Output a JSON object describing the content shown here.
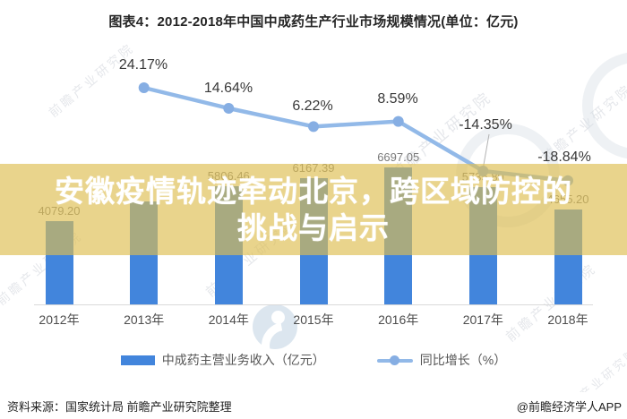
{
  "title": "图表4：2012-2018年中国中成药生产行业市场规模情况(单位：亿元)",
  "banner": {
    "line1": "安徽疫情轨迹牵动北京，跨区域防控的",
    "line2": "挑战与启示",
    "background": "#E9D48B",
    "text_color": "#FFFFFF"
  },
  "chart_data": {
    "type": "bar",
    "subtype": "combo-bar-line",
    "title": "图表4：2012-2018年中国中成药生产行业市场规模情况(单位：亿元)",
    "categories": [
      "2012年",
      "2013年",
      "2014年",
      "2015年",
      "2016年",
      "2017年",
      "2018年"
    ],
    "series": [
      {
        "name": "中成药主营业务收入（亿元）",
        "type": "bar",
        "color": "#4285DC",
        "values": [
          4079.2,
          5065.18,
          5806.46,
          6167.39,
          6697.05,
          5735.8,
          4655.2
        ],
        "labels": [
          "4079.20",
          "",
          "5806.46",
          "6167.39",
          "6697.05",
          "5735.80",
          "4655.20"
        ]
      },
      {
        "name": "同比增长（%）",
        "type": "line",
        "color": "#92B9E8",
        "values": [
          null,
          24.17,
          14.64,
          6.22,
          8.59,
          -14.35,
          -18.84
        ],
        "labels": [
          "",
          "24.17%",
          "14.64%",
          "6.22%",
          "8.59%",
          "-14.35%",
          "-18.84%"
        ]
      }
    ],
    "xlabel": "",
    "ylabel": "",
    "bar_axis_min": 0,
    "gridlines": false,
    "value_axis_visible": false,
    "legend_position": "bottom"
  },
  "legend": {
    "bar_label": "中成药主营业务收入（亿元）",
    "line_label": "同比增长（%）"
  },
  "footer": {
    "source": "资料来源：国家统计局 前瞻产业研究院整理",
    "credit": "@前瞻经济学人APP"
  },
  "watermark": {
    "text": "前瞻产业研究院"
  }
}
